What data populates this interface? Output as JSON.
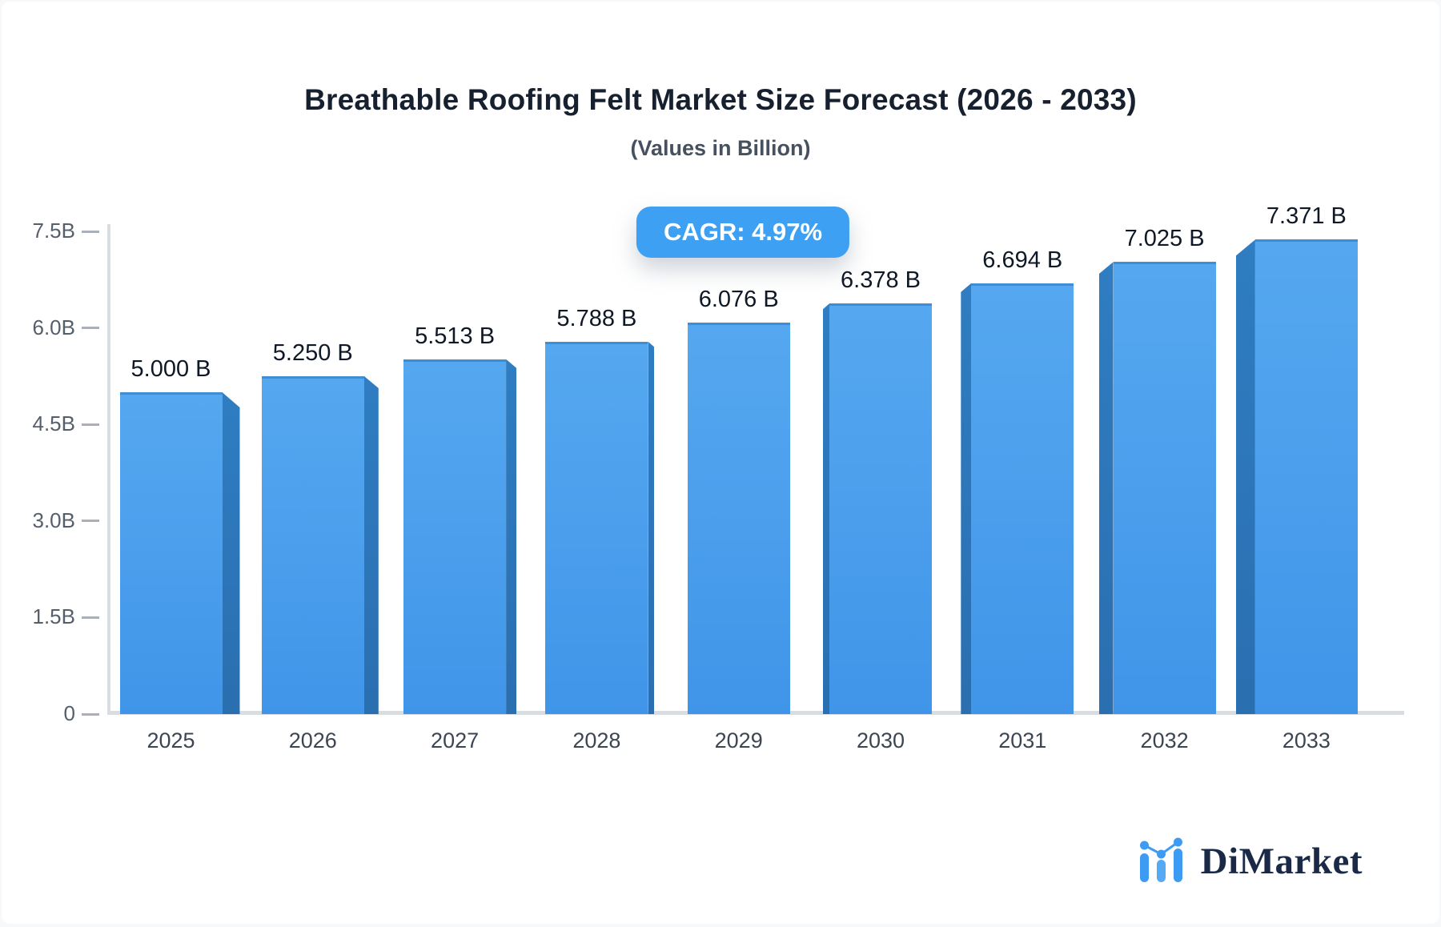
{
  "title": "Breathable Roofing Felt Market Size Forecast (2026 - 2033)",
  "subtitle": "(Values in Billion)",
  "cagr_label": "CAGR: 4.97%",
  "brand": {
    "name": "DiMarket"
  },
  "colors": {
    "accent": "#3da0f2",
    "bar_front_top": "#55a8ef",
    "bar_front_bottom": "#4095e9",
    "bar_top_edge": "#3e8ed6",
    "bar_side_top": "#2f7dc2",
    "bar_side_bottom": "#2a6fb0",
    "axis": "#d9dde2",
    "logo_icon": "#3e9bf4",
    "logo_text": "#1a2946"
  },
  "chart_data": {
    "type": "bar",
    "title": "Breathable Roofing Felt Market Size Forecast (2026 - 2033)",
    "subtitle": "(Values in Billion)",
    "categories": [
      "2025",
      "2026",
      "2027",
      "2028",
      "2029",
      "2030",
      "2031",
      "2032",
      "2033"
    ],
    "values": [
      5.0,
      5.25,
      5.513,
      5.788,
      6.076,
      6.378,
      6.694,
      7.025,
      7.371
    ],
    "bar_labels": [
      "5.000 B",
      "5.250 B",
      "5.513 B",
      "5.788 B",
      "6.076 B",
      "6.378 B",
      "6.694 B",
      "7.025 B",
      "7.371 B"
    ],
    "xlabel": "",
    "ylabel": "",
    "ylim": [
      0,
      7.5
    ],
    "y_ticks": [
      {
        "value": 0,
        "label": "0"
      },
      {
        "value": 1.5,
        "label": "1.5B"
      },
      {
        "value": 3.0,
        "label": "3.0B"
      },
      {
        "value": 4.5,
        "label": "4.5B"
      },
      {
        "value": 6.0,
        "label": "6.0B"
      },
      {
        "value": 7.5,
        "label": "7.5B"
      }
    ],
    "grid": false,
    "legend": false,
    "annotation": "CAGR: 4.97%"
  }
}
